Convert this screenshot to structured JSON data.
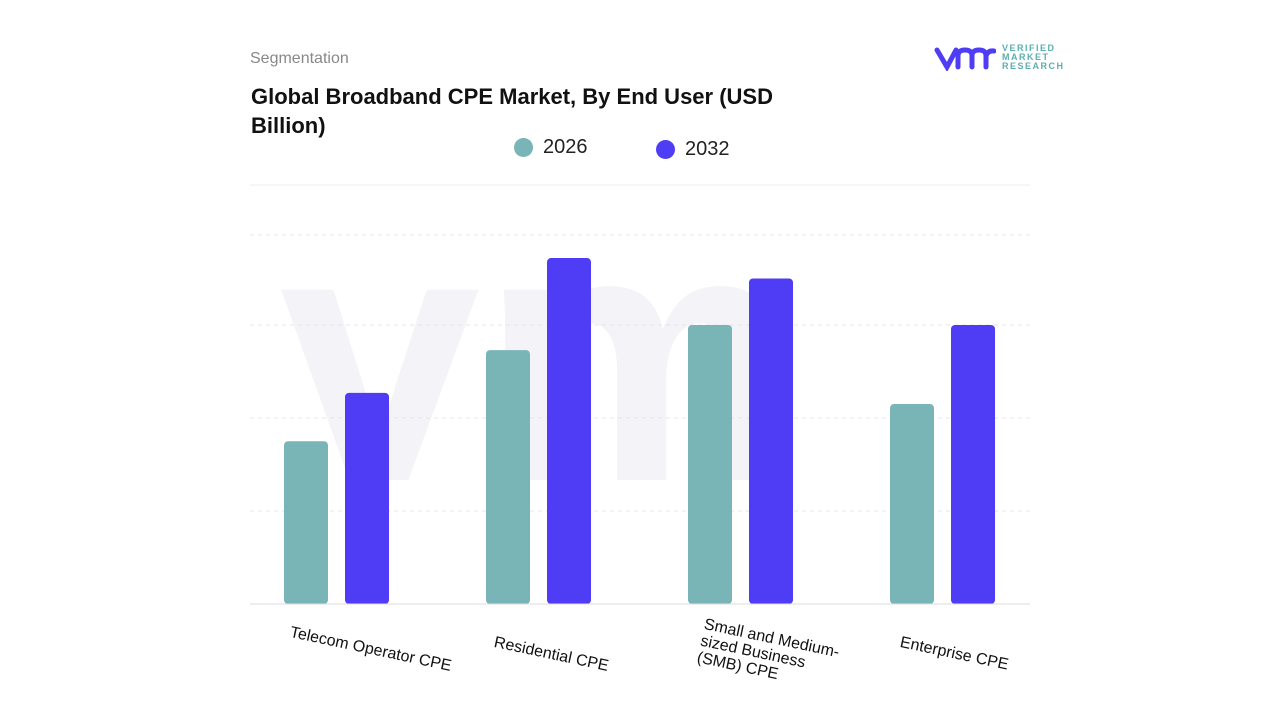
{
  "header": {
    "section": "Segmentation",
    "title": "Global Broadband CPE Market, By End User (USD Billion)"
  },
  "logo": {
    "mark": "vmr",
    "text": "VERIFIED MARKET RESEARCH"
  },
  "colors": {
    "s2026": "#79b4b7",
    "s2032": "#4f3cf5"
  },
  "chart_data": {
    "type": "bar",
    "title": "Global Broadband CPE Market, By End User (USD Billion)",
    "categories": [
      "Telecom Operator CPE",
      "Residential CPE",
      "Small and Medium-sized Business (SMB) CPE",
      "Enterprise CPE"
    ],
    "series": [
      {
        "name": "2026",
        "values": [
          1.75,
          2.73,
          3.0,
          2.15
        ]
      },
      {
        "name": "2032",
        "values": [
          2.27,
          3.72,
          3.5,
          3.0
        ]
      }
    ],
    "ylim": [
      0,
      4.5
    ],
    "grid": true,
    "legend": "top",
    "xlabel": "",
    "ylabel": ""
  }
}
